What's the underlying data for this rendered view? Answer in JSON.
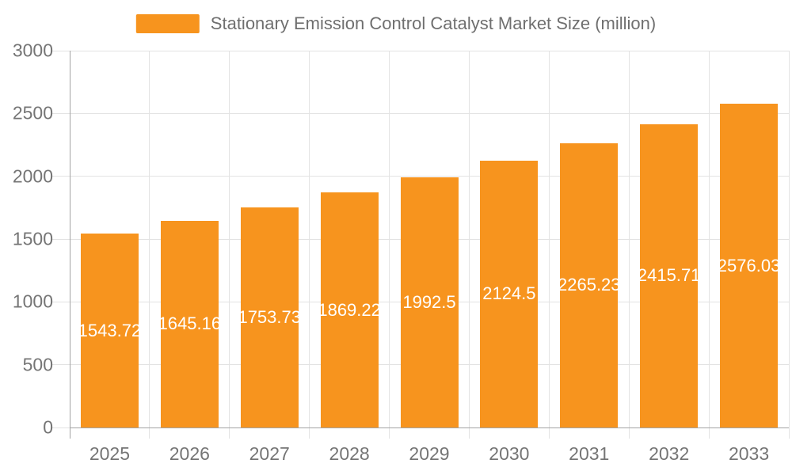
{
  "legend": {
    "label": "Stationary Emission Control Catalyst Market Size (million)"
  },
  "chart_data": {
    "type": "bar",
    "title": "Stationary Emission Control Catalyst Market Size (million)",
    "categories": [
      "2025",
      "2026",
      "2027",
      "2028",
      "2029",
      "2030",
      "2031",
      "2032",
      "2033"
    ],
    "values": [
      1543.72,
      1645.16,
      1753.73,
      1869.22,
      1992.5,
      2124.5,
      2265.23,
      2415.71,
      2576.03
    ],
    "bar_labels": [
      "1543.72",
      "1645.16",
      "1753.73",
      "1869.22",
      "1992.5",
      "2124.5",
      "2265.23",
      "2415.71",
      "2576.03"
    ],
    "xlabel": "",
    "ylabel": "",
    "ylim": [
      0,
      3000
    ],
    "y_ticks": [
      0,
      500,
      1000,
      1500,
      2000,
      2500,
      3000
    ],
    "y_tick_labels": [
      "0",
      "500",
      "1000",
      "1500",
      "2000",
      "2500",
      "3000"
    ],
    "grid": true,
    "legend_position": "top",
    "colors": {
      "bar": "#F7941E",
      "bar_value_text": "#FFFFFF",
      "axis_text": "#757575",
      "legend_text": "#6F6F6F",
      "axis_line": "#A3A3A3",
      "gridline": "#E3E3E3",
      "background": "#FFFFFF"
    }
  }
}
